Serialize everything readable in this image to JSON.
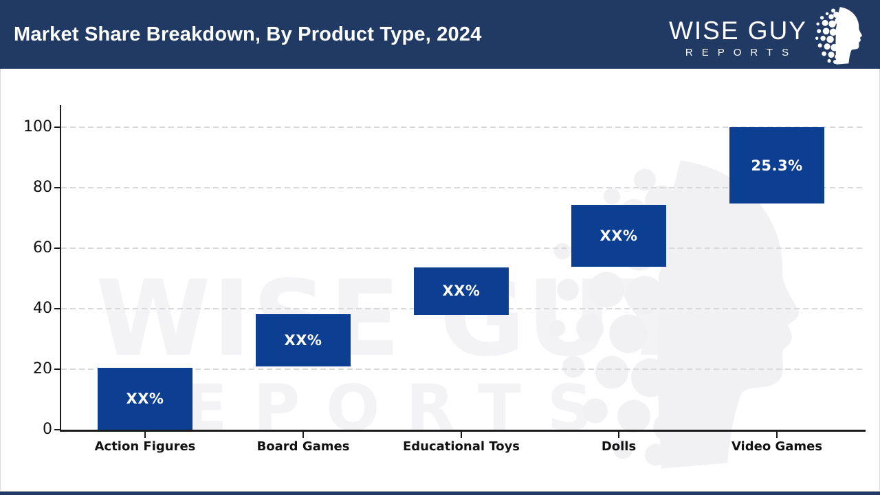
{
  "header": {
    "title": "Market Share Breakdown, By Product Type, 2024",
    "logo": {
      "primary": "WISE GUY",
      "secondary": "REPORTS"
    }
  },
  "watermark": {
    "primary": "WISE GUY",
    "secondary": "REPORTS"
  },
  "chart_data": {
    "type": "bar",
    "variant": "waterfall",
    "title": "Market Share Breakdown, By Product Type, 2024",
    "categories": [
      "Action Figures",
      "Board Games",
      "Educational Toys",
      "Dolls",
      "Video Games"
    ],
    "bars": [
      {
        "category": "Action Figures",
        "start": 0,
        "end": 20.5,
        "label": "XX%"
      },
      {
        "category": "Board Games",
        "start": 20.8,
        "end": 38.2,
        "label": "XX%"
      },
      {
        "category": "Educational Toys",
        "start": 38.0,
        "end": 53.6,
        "label": "XX%"
      },
      {
        "category": "Dolls",
        "start": 53.8,
        "end": 74.3,
        "label": "XX%"
      },
      {
        "category": "Video Games",
        "start": 74.7,
        "end": 100.0,
        "label": "25.3%"
      }
    ],
    "yticks": [
      0,
      20,
      40,
      60,
      80,
      100
    ],
    "ylim": [
      0,
      107
    ],
    "xlabel": "",
    "ylabel": "",
    "grid": "horizontal-dashed",
    "legend": "none",
    "bar_color": "#0c3e92",
    "bar_label_color": "#ffffff"
  },
  "colors": {
    "header_bg": "#213a64",
    "footer_bar": "#213a64",
    "bar_fill": "#0c3e92",
    "axis": "#1a1a1a",
    "gridline": "#d8d8d8",
    "watermark": "#f3f3f5"
  }
}
